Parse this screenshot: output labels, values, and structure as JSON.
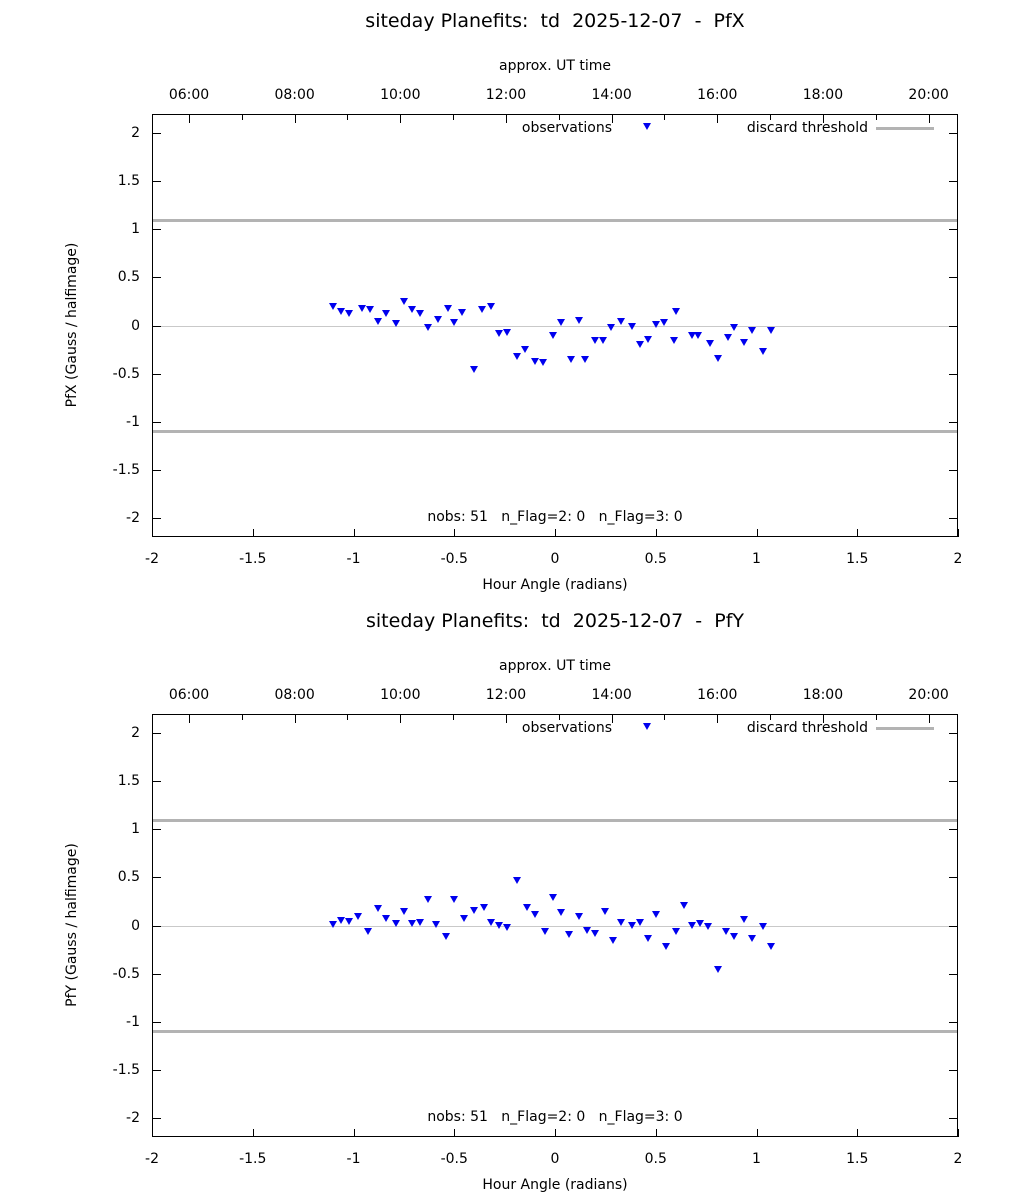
{
  "colors": {
    "marker": "#0000ee",
    "threshold": "#b3b3b3",
    "zero_line": "#c9c9c9",
    "axis": "#000000",
    "background": "#ffffff"
  },
  "chart_data": [
    {
      "type": "scatter",
      "title": "siteday Planefits:  td  2025-12-07  -  PfX",
      "x2_axis_label": "approx. UT time",
      "xlabel": "Hour Angle (radians)",
      "ylabel": "PfX (Gauss / halfimage)",
      "annotation": "nobs: 51   n_Flag=2: 0   n_Flag=3: 0",
      "legend": {
        "observations_label": "observations",
        "discard_label": "discard threshold"
      },
      "xlim": [
        -2,
        2
      ],
      "ylim": [
        -2.2,
        2.2
      ],
      "grid": false,
      "thresholds": [
        1.1,
        -1.1
      ],
      "zero_line": 0,
      "x_tick_labels": [
        "-2",
        "-1.5",
        "-1",
        "-0.5",
        "0",
        "0.5",
        "1",
        "1.5",
        "2"
      ],
      "y_tick_labels": [
        "2",
        "1.5",
        "1",
        "0.5",
        "0",
        "-0.5",
        "-1",
        "-1.5",
        "-2"
      ],
      "x2_tick_labels": [
        "06:00",
        "08:00",
        "10:00",
        "12:00",
        "14:00",
        "16:00",
        "18:00",
        "20:00"
      ],
      "series": [
        {
          "name": "observations",
          "x": [
            -1.1,
            -1.06,
            -1.02,
            -0.96,
            -0.92,
            -0.88,
            -0.84,
            -0.79,
            -0.75,
            -0.71,
            -0.67,
            -0.63,
            -0.58,
            -0.53,
            -0.5,
            -0.46,
            -0.4,
            -0.36,
            -0.32,
            -0.28,
            -0.24,
            -0.19,
            -0.15,
            -0.1,
            -0.06,
            -0.01,
            0.03,
            0.08,
            0.12,
            0.15,
            0.2,
            0.24,
            0.28,
            0.33,
            0.38,
            0.42,
            0.46,
            0.5,
            0.54,
            0.59,
            0.6,
            0.68,
            0.71,
            0.77,
            0.81,
            0.86,
            0.89,
            0.94,
            0.98,
            1.03,
            1.07
          ],
          "y": [
            0.2,
            0.15,
            0.13,
            0.18,
            0.17,
            0.05,
            0.13,
            0.03,
            0.26,
            0.17,
            0.13,
            -0.02,
            0.07,
            0.18,
            0.04,
            0.14,
            -0.45,
            0.17,
            0.2,
            -0.08,
            -0.07,
            -0.32,
            -0.24,
            -0.37,
            -0.38,
            -0.1,
            0.04,
            -0.35,
            0.06,
            -0.35,
            -0.15,
            -0.15,
            -0.02,
            0.05,
            -0.01,
            -0.19,
            -0.14,
            0.02,
            0.04,
            -0.15,
            0.15,
            -0.1,
            -0.1,
            -0.18,
            -0.34,
            -0.12,
            -0.02,
            -0.17,
            -0.05,
            -0.27,
            -0.05
          ]
        }
      ]
    },
    {
      "type": "scatter",
      "title": "siteday Planefits:  td  2025-12-07  -  PfY",
      "x2_axis_label": "approx. UT time",
      "xlabel": "Hour Angle (radians)",
      "ylabel": "PfY (Gauss / halfimage)",
      "annotation": "nobs: 51   n_Flag=2: 0   n_Flag=3: 0",
      "legend": {
        "observations_label": "observations",
        "discard_label": "discard threshold"
      },
      "xlim": [
        -2,
        2
      ],
      "ylim": [
        -2.2,
        2.2
      ],
      "grid": false,
      "thresholds": [
        1.1,
        -1.1
      ],
      "zero_line": 0,
      "x_tick_labels": [
        "-2",
        "-1.5",
        "-1",
        "-0.5",
        "0",
        "0.5",
        "1",
        "1.5",
        "2"
      ],
      "y_tick_labels": [
        "2",
        "1.5",
        "1",
        "0.5",
        "0",
        "-0.5",
        "-1",
        "-1.5",
        "-2"
      ],
      "x2_tick_labels": [
        "06:00",
        "08:00",
        "10:00",
        "12:00",
        "14:00",
        "16:00",
        "18:00",
        "20:00"
      ],
      "series": [
        {
          "name": "observations",
          "x": [
            -1.1,
            -1.06,
            -1.02,
            -0.98,
            -0.93,
            -0.88,
            -0.84,
            -0.79,
            -0.75,
            -0.71,
            -0.67,
            -0.63,
            -0.59,
            -0.54,
            -0.5,
            -0.45,
            -0.4,
            -0.35,
            -0.32,
            -0.28,
            -0.24,
            -0.19,
            -0.14,
            -0.1,
            -0.05,
            -0.01,
            0.03,
            0.07,
            0.12,
            0.16,
            0.2,
            0.25,
            0.29,
            0.33,
            0.38,
            0.42,
            0.46,
            0.5,
            0.55,
            0.6,
            0.64,
            0.68,
            0.72,
            0.76,
            0.81,
            0.85,
            0.89,
            0.94,
            0.98,
            1.03,
            1.07
          ],
          "y": [
            0.02,
            0.06,
            0.05,
            0.1,
            -0.06,
            0.18,
            0.08,
            0.03,
            0.15,
            0.03,
            0.04,
            0.28,
            0.02,
            -0.11,
            0.28,
            0.08,
            0.16,
            0.19,
            0.04,
            0.01,
            -0.02,
            0.47,
            0.19,
            0.12,
            -0.06,
            0.3,
            0.14,
            -0.09,
            0.1,
            -0.05,
            -0.08,
            0.15,
            -0.15,
            0.04,
            0.01,
            0.04,
            -0.13,
            0.12,
            -0.21,
            -0.06,
            0.21,
            0.01,
            0.03,
            -0.01,
            -0.45,
            -0.06,
            -0.11,
            0.07,
            -0.13,
            -0.01,
            -0.21
          ]
        }
      ]
    }
  ]
}
